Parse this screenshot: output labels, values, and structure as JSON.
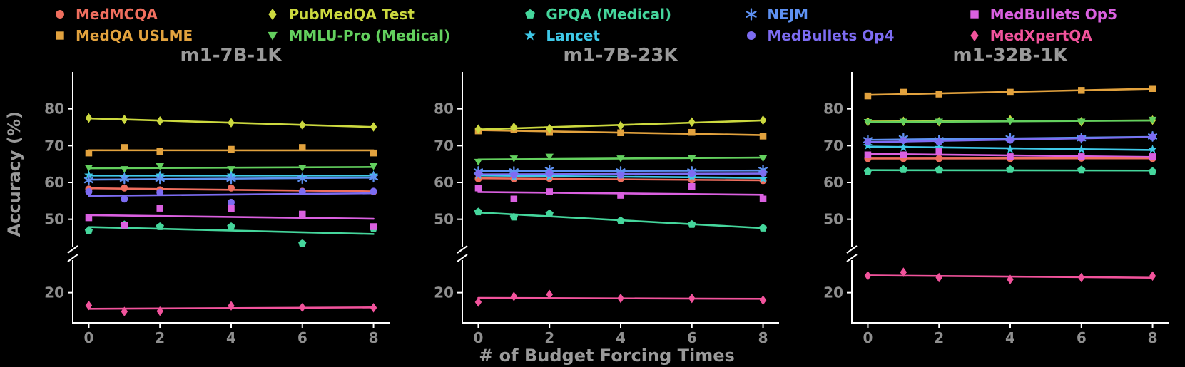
{
  "figure": {
    "xlabel": "# of Budget Forcing Times",
    "ylabel": "Accuracy (%)",
    "background": "#000000",
    "axis_color": "#ffffff",
    "tick_color": "#8f8f8f",
    "label_color": "#9a9a9a"
  },
  "series_meta": [
    {
      "name": "MedMCQA",
      "color": "#ef6e5e",
      "marker": "circle"
    },
    {
      "name": "MedQA USLME",
      "color": "#e2a23e",
      "marker": "square"
    },
    {
      "name": "PubMedQA Test",
      "color": "#ccd93f",
      "marker": "diamond"
    },
    {
      "name": "MMLU-Pro (Medical)",
      "color": "#63d05e",
      "marker": "triangle-down"
    },
    {
      "name": "GPQA (Medical)",
      "color": "#45d69c",
      "marker": "pentagon"
    },
    {
      "name": "Lancet",
      "color": "#3fc9e8",
      "marker": "star"
    },
    {
      "name": "NEJM",
      "color": "#5e91f2",
      "marker": "asterisk"
    },
    {
      "name": "MedBullets Op4",
      "color": "#7d6cf2",
      "marker": "circle"
    },
    {
      "name": "MedBullets Op5",
      "color": "#da60e0",
      "marker": "square"
    },
    {
      "name": "MedXpertQA",
      "color": "#f2539c",
      "marker": "diamond"
    }
  ],
  "chart_data": [
    {
      "type": "scatter",
      "title": "m1-7B-1K",
      "x": [
        0,
        1,
        2,
        4,
        6,
        8
      ],
      "xticks": [
        0,
        2,
        4,
        6,
        8
      ],
      "yticks_upper": [
        80,
        70,
        60,
        50
      ],
      "yticks_lower": [
        20
      ],
      "y_axis": {
        "break": true,
        "upper_range": [
          42,
          90
        ],
        "lower_range": [
          12,
          29
        ]
      },
      "series": [
        {
          "name": "MedMCQA",
          "values": [
            58.2,
            58.5,
            58.0,
            58.5,
            57.6,
            57.5
          ]
        },
        {
          "name": "MedQA USLME",
          "values": [
            68.0,
            69.5,
            68.4,
            69.0,
            69.5,
            68.0
          ]
        },
        {
          "name": "PubMedQA Test",
          "values": [
            77.5,
            77.1,
            76.7,
            76.2,
            75.6,
            75.1
          ]
        },
        {
          "name": "MMLU-Pro (Medical)",
          "values": [
            64.0,
            63.6,
            64.4,
            63.6,
            64.0,
            64.4
          ]
        },
        {
          "name": "GPQA (Medical)",
          "values": [
            46.9,
            48.5,
            48.0,
            48.0,
            43.4,
            47.5
          ]
        },
        {
          "name": "Lancet",
          "values": [
            62.0,
            61.6,
            62.0,
            62.0,
            61.6,
            62.0
          ]
        },
        {
          "name": "NEJM",
          "values": [
            60.6,
            61.0,
            61.0,
            61.0,
            61.0,
            61.4
          ]
        },
        {
          "name": "MedBullets Op4",
          "values": [
            57.5,
            55.5,
            57.3,
            54.6,
            57.5,
            57.6
          ]
        },
        {
          "name": "MedBullets Op5",
          "values": [
            50.4,
            48.4,
            53.0,
            52.9,
            51.4,
            48.0
          ]
        },
        {
          "name": "MedXpertQA",
          "values": [
            16.6,
            15.0,
            15.1,
            16.5,
            16.1,
            16.0
          ]
        }
      ]
    },
    {
      "type": "scatter",
      "title": "m1-7B-23K",
      "x": [
        0,
        1,
        2,
        4,
        6,
        8
      ],
      "xticks": [
        0,
        2,
        4,
        6,
        8
      ],
      "yticks_upper": [
        80,
        70,
        60,
        50
      ],
      "yticks_lower": [
        20
      ],
      "y_axis": {
        "break": true,
        "upper_range": [
          42,
          90
        ],
        "lower_range": [
          12,
          29
        ]
      },
      "series": [
        {
          "name": "MedMCQA",
          "values": [
            61.0,
            61.0,
            61.1,
            61.0,
            60.7,
            60.5
          ]
        },
        {
          "name": "MedQA USLME",
          "values": [
            74.0,
            74.4,
            73.6,
            73.5,
            73.6,
            72.6
          ]
        },
        {
          "name": "PubMedQA Test",
          "values": [
            74.5,
            75.0,
            74.6,
            75.4,
            76.4,
            76.9
          ]
        },
        {
          "name": "MMLU-Pro (Medical)",
          "values": [
            65.6,
            66.5,
            67.0,
            66.5,
            66.6,
            66.6
          ]
        },
        {
          "name": "GPQA (Medical)",
          "values": [
            52.0,
            50.6,
            51.5,
            49.6,
            48.6,
            47.6
          ]
        },
        {
          "name": "Lancet",
          "values": [
            62.0,
            61.5,
            61.6,
            62.0,
            61.5,
            61.0
          ]
        },
        {
          "name": "NEJM",
          "values": [
            63.0,
            63.0,
            63.4,
            63.0,
            63.0,
            63.4
          ]
        },
        {
          "name": "MedBullets Op4",
          "values": [
            62.4,
            62.0,
            62.4,
            62.0,
            62.4,
            62.5
          ]
        },
        {
          "name": "MedBullets Op5",
          "values": [
            58.5,
            55.5,
            57.5,
            56.5,
            58.9,
            55.5
          ]
        },
        {
          "name": "MedXpertQA",
          "values": [
            17.5,
            19.0,
            19.5,
            18.5,
            18.5,
            18.0
          ]
        }
      ]
    },
    {
      "type": "scatter",
      "title": "m1-32B-1K",
      "x": [
        0,
        1,
        2,
        4,
        6,
        8
      ],
      "xticks": [
        0,
        2,
        4,
        6,
        8
      ],
      "yticks_upper": [
        80,
        70,
        60,
        50
      ],
      "yticks_lower": [
        20
      ],
      "y_axis": {
        "break": true,
        "upper_range": [
          42,
          90
        ],
        "lower_range": [
          12,
          29
        ]
      },
      "series": [
        {
          "name": "MedMCQA",
          "values": [
            66.5,
            66.5,
            66.5,
            66.5,
            66.6,
            66.5
          ]
        },
        {
          "name": "MedQA USLME",
          "values": [
            83.5,
            84.5,
            84.0,
            84.5,
            85.0,
            85.5
          ]
        },
        {
          "name": "PubMedQA Test",
          "values": [
            76.5,
            76.6,
            76.5,
            77.0,
            76.5,
            76.9
          ]
        },
        {
          "name": "MMLU-Pro (Medical)",
          "values": [
            76.4,
            76.5,
            76.5,
            76.6,
            76.5,
            77.0
          ]
        },
        {
          "name": "GPQA (Medical)",
          "values": [
            63.0,
            63.5,
            63.4,
            63.5,
            63.4,
            63.0
          ]
        },
        {
          "name": "Lancet",
          "values": [
            70.0,
            69.5,
            69.5,
            69.0,
            69.0,
            69.0
          ]
        },
        {
          "name": "NEJM",
          "values": [
            71.5,
            72.0,
            71.5,
            72.0,
            72.0,
            72.5
          ]
        },
        {
          "name": "MedBullets Op4",
          "values": [
            71.0,
            71.4,
            71.0,
            71.5,
            72.0,
            72.4
          ]
        },
        {
          "name": "MedBullets Op5",
          "values": [
            67.5,
            67.5,
            68.4,
            67.0,
            67.0,
            67.0
          ]
        },
        {
          "name": "MedXpertQA",
          "values": [
            24.5,
            25.4,
            24.0,
            23.5,
            24.0,
            24.4
          ]
        }
      ]
    }
  ]
}
